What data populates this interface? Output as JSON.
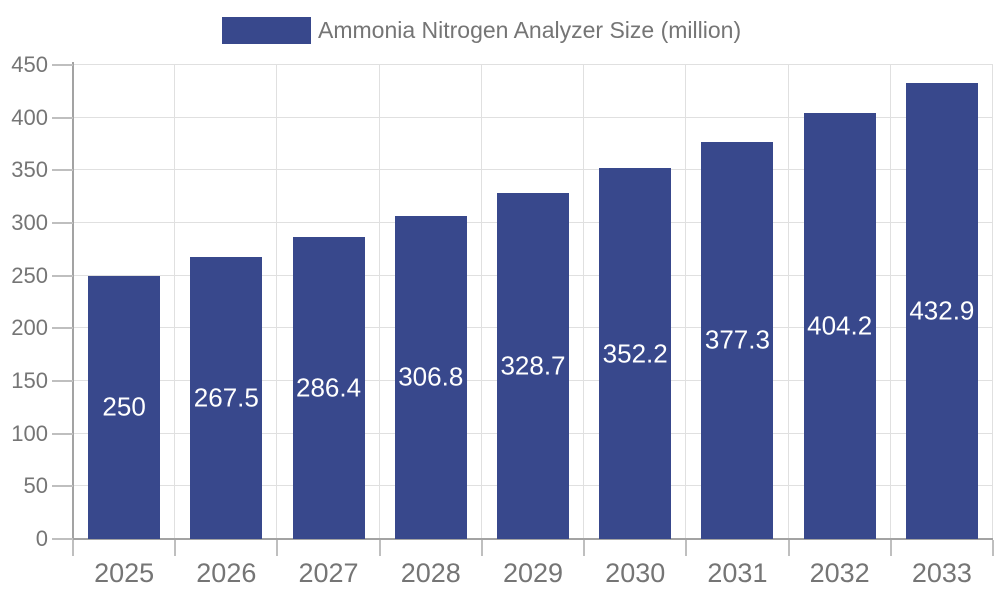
{
  "legend": {
    "label": "Ammonia Nitrogen Analyzer Size (million)"
  },
  "colors": {
    "bar": "#38488C",
    "bar_label": "#FFFFFF",
    "axis_line": "#A3A3A3",
    "tick": "#BFBFBF",
    "grid": "#E0E0E0",
    "text": "#757575",
    "background": "#FFFFFF"
  },
  "chart_data": {
    "type": "bar",
    "title": "Ammonia Nitrogen Analyzer Size (million)",
    "categories": [
      "2025",
      "2026",
      "2027",
      "2028",
      "2029",
      "2030",
      "2031",
      "2032",
      "2033"
    ],
    "values": [
      250,
      267.5,
      286.4,
      306.8,
      328.7,
      352.2,
      377.3,
      404.2,
      432.9
    ],
    "xlabel": "",
    "ylabel": "",
    "ylim": [
      0,
      450
    ],
    "yticks": [
      0,
      50,
      100,
      150,
      200,
      250,
      300,
      350,
      400,
      450
    ],
    "grid": true,
    "legend_position": "top",
    "value_label_position": "inside-center"
  }
}
